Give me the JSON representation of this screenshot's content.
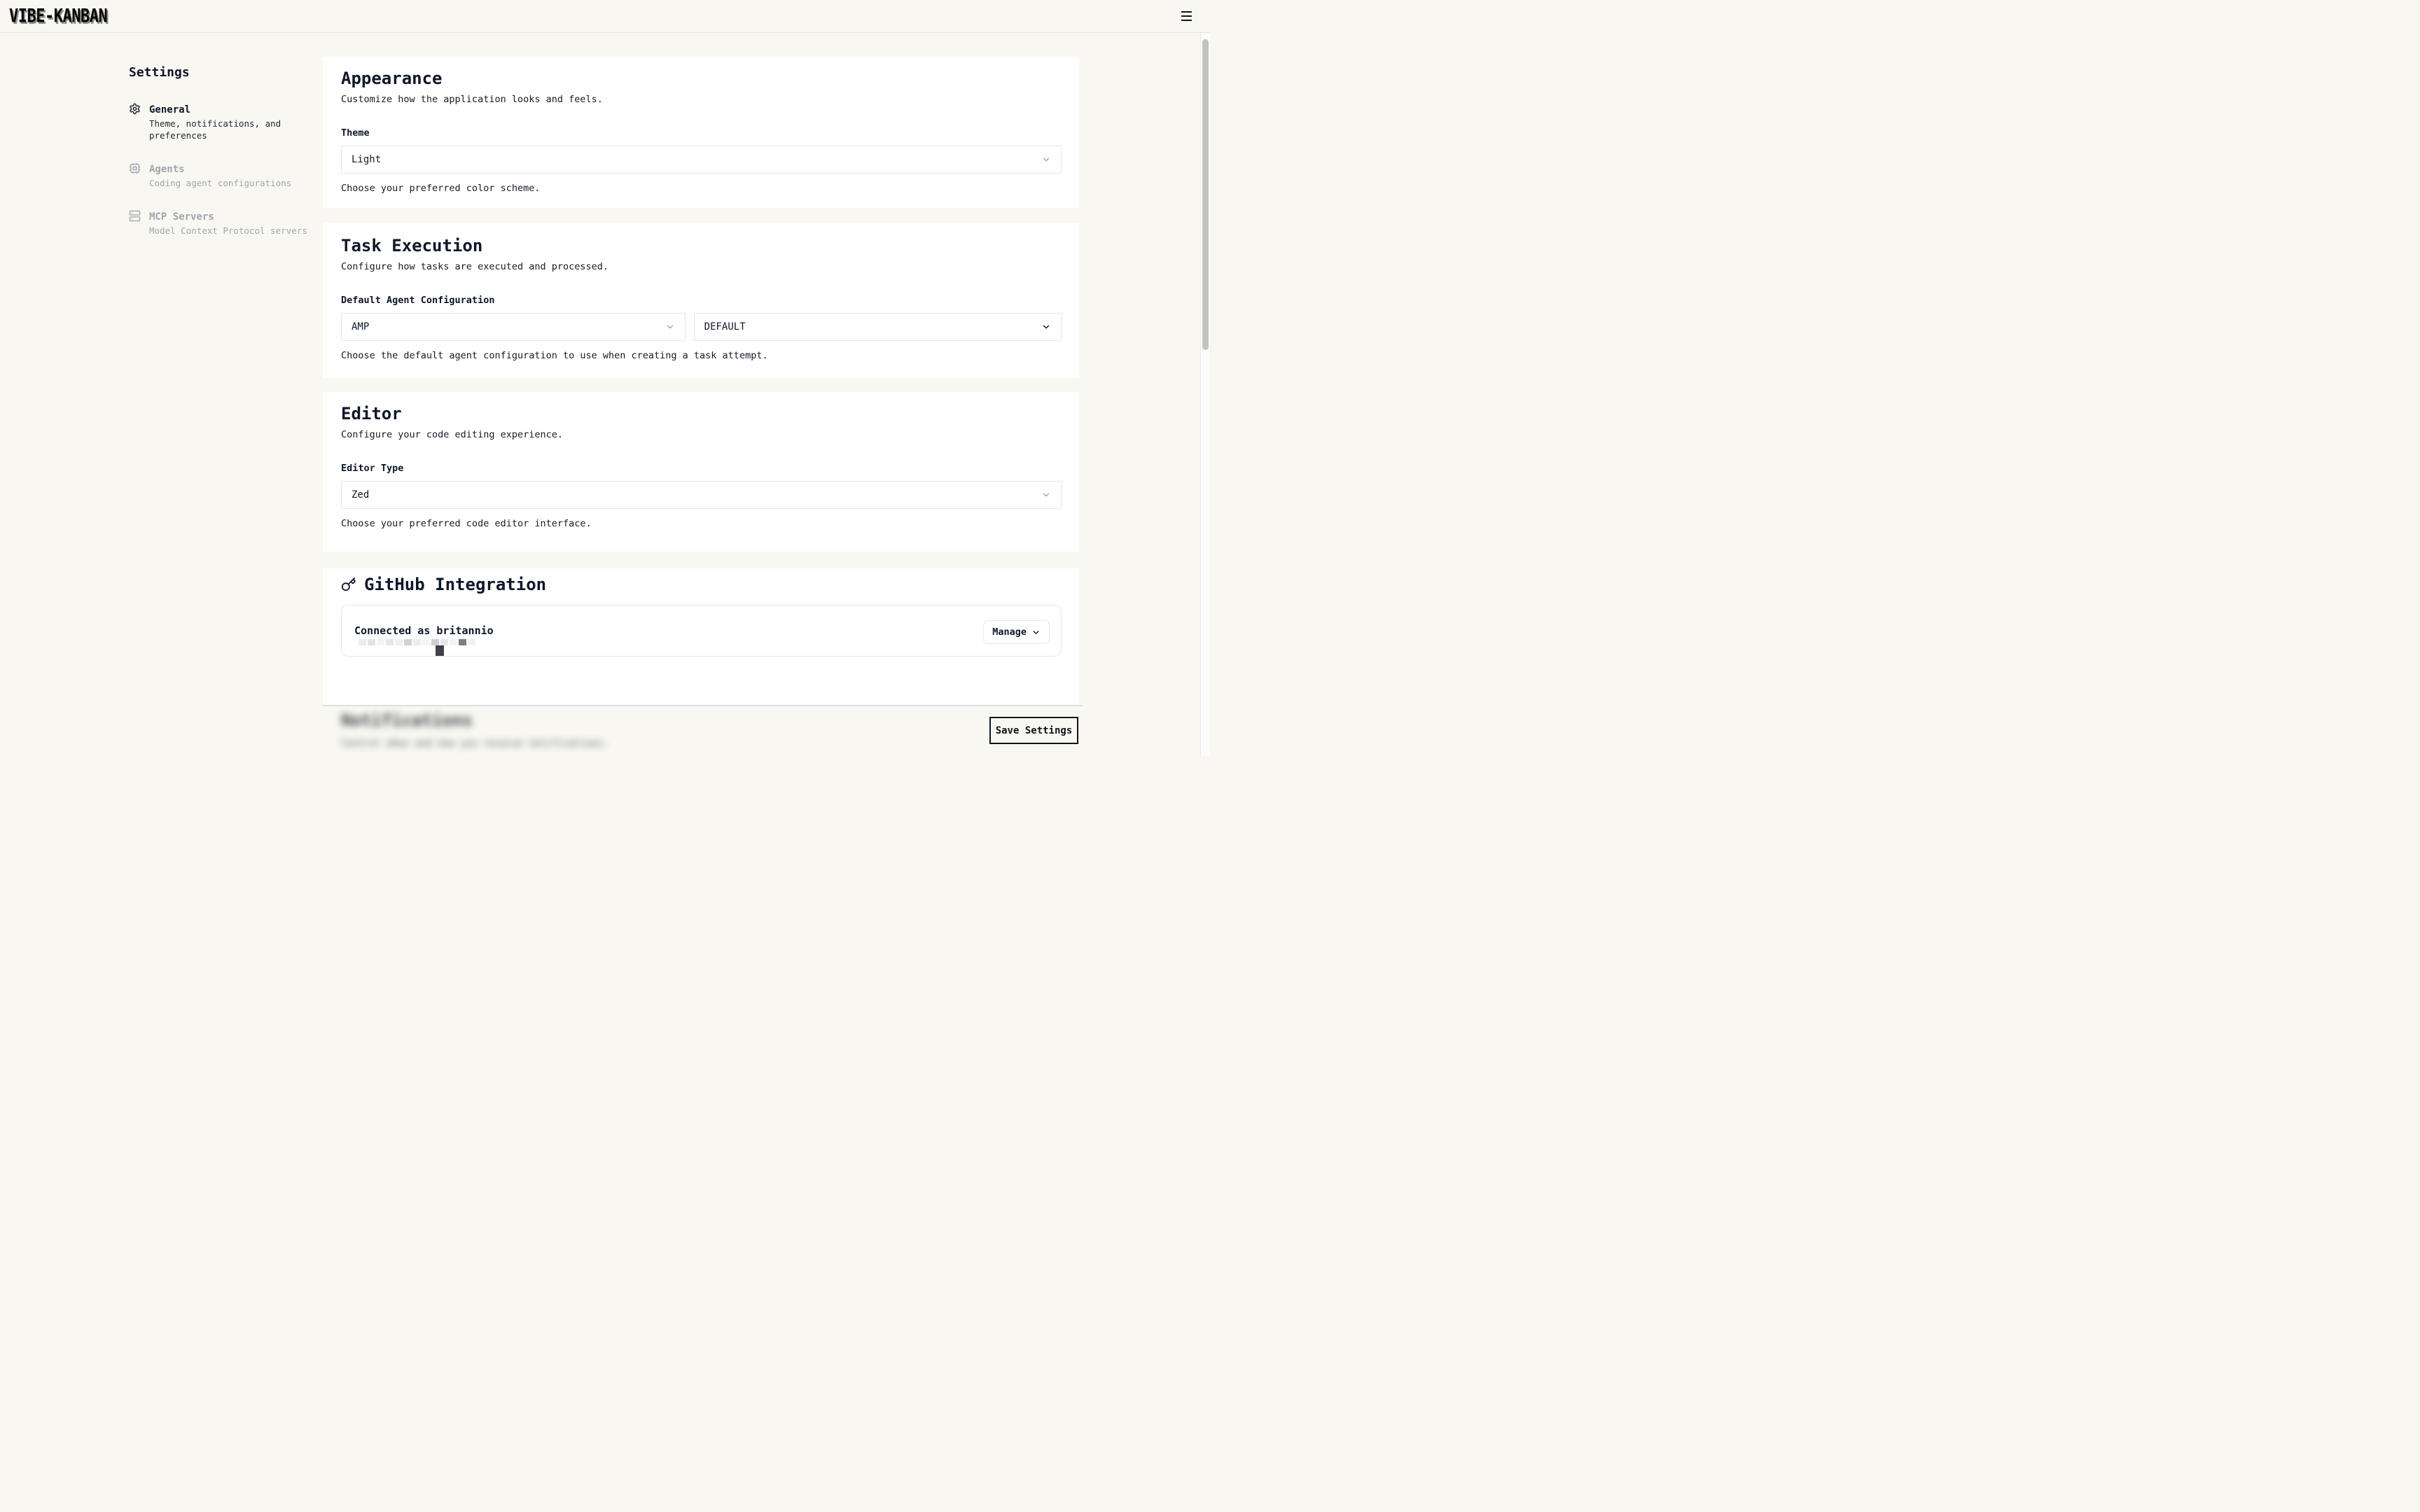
{
  "header": {
    "logo": "VIBE-KANBAN",
    "menu_icon": "hamburger-icon"
  },
  "sidebar": {
    "title": "Settings",
    "items": [
      {
        "label": "General",
        "description": "Theme, notifications, and preferences",
        "icon": "gear-icon",
        "active": true
      },
      {
        "label": "Agents",
        "description": "Coding agent configurations",
        "icon": "cpu-icon",
        "active": false
      },
      {
        "label": "MCP Servers",
        "description": "Model Context Protocol servers",
        "icon": "server-icon",
        "active": false
      }
    ]
  },
  "sections": {
    "appearance": {
      "title": "Appearance",
      "description": "Customize how the application looks and feels.",
      "theme_label": "Theme",
      "theme_value": "Light",
      "theme_help": "Choose your preferred color scheme."
    },
    "task_execution": {
      "title": "Task Execution",
      "description": "Configure how tasks are executed and processed.",
      "agent_config_label": "Default Agent Configuration",
      "agent_value": "AMP",
      "config_value": "DEFAULT",
      "agent_help": "Choose the default agent configuration to use when creating a task attempt."
    },
    "editor": {
      "title": "Editor",
      "description": "Configure your code editing experience.",
      "type_label": "Editor Type",
      "type_value": "Zed",
      "type_help": "Choose your preferred code editor interface."
    },
    "github": {
      "title": "GitHub Integration",
      "icon": "key-icon",
      "connected_text": "Connected as britannio",
      "manage_label": "Manage",
      "redacted_blocks": [
        "#ececec",
        "#e2e2e2",
        "#f4f4f2",
        "#e6e6e6",
        "#f0f0ee",
        "#d2d2d4",
        "#ededeb",
        "#f5f5f3",
        "#cfcfd2",
        "#e9e9e7",
        "#f3f3f1",
        "#7b7e86",
        "#f1f1ef"
      ],
      "redacted_block_dark": "#3f424b"
    },
    "notifications": {
      "title": "Notifications",
      "description": "Control when and how you receive notifications.",
      "blurred": true
    }
  },
  "footer": {
    "save_label": "Save Settings"
  },
  "colors": {
    "page_bg": "#f8f7f1",
    "card_bg": "#ffffff",
    "text": "#0f172a",
    "muted": "#a0a6b0",
    "border": "#e2e6ed",
    "save_border": "#10141d",
    "scroll_thumb": "#c3c3c0"
  }
}
